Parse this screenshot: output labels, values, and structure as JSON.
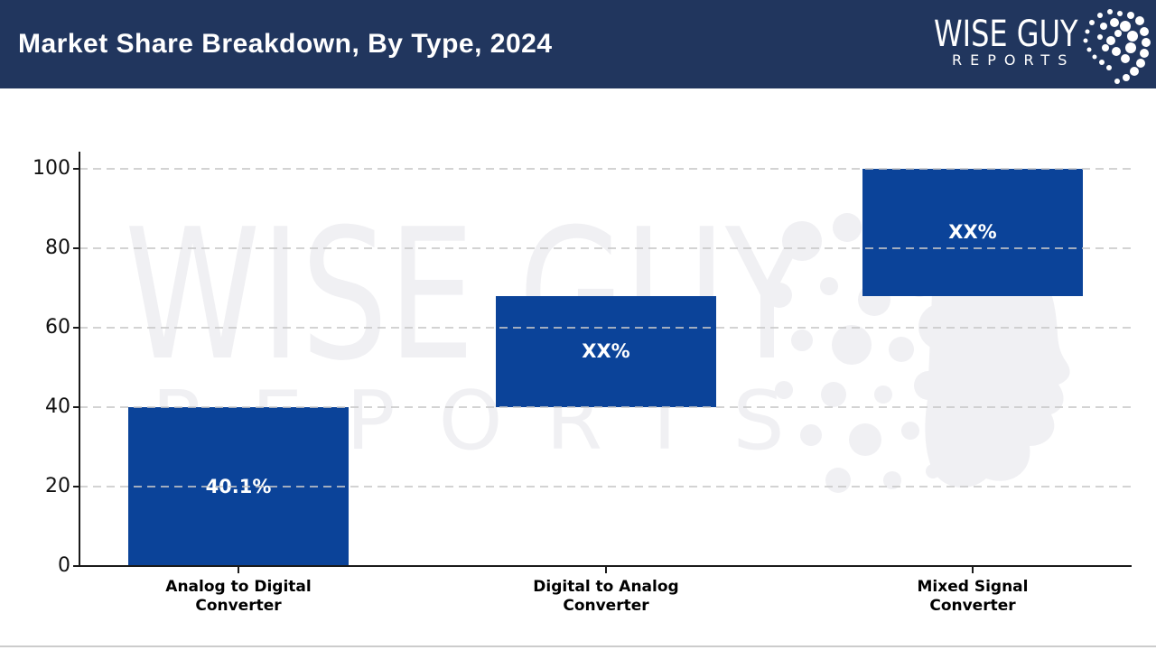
{
  "header": {
    "title": "Market Share Breakdown, By Type, 2024",
    "logo": {
      "line1": "WISE GUY",
      "line2": "REPORTS"
    }
  },
  "watermark": {
    "line1": "WISE GUY",
    "line2": "REPORTS"
  },
  "chart_data": {
    "type": "bar",
    "variant": "floating-segment-waterfall",
    "title": "Market Share Breakdown, By Type, 2024",
    "categories": [
      "Analog to Digital Converter",
      "Digital to Analog Converter",
      "Mixed Signal Converter"
    ],
    "bars": [
      {
        "category": "Analog to Digital Converter",
        "start": 0,
        "end": 40.1,
        "label": "40.1%"
      },
      {
        "category": "Digital to Analog Converter",
        "start": 40.1,
        "end": 68,
        "label": "XX%"
      },
      {
        "category": "Mixed Signal Converter",
        "start": 68,
        "end": 100,
        "label": "XX%"
      }
    ],
    "xlabel": "",
    "ylabel": "",
    "ylim": [
      0,
      100
    ],
    "yticks": [
      0,
      20,
      40,
      60,
      80,
      100
    ],
    "grid": "horizontal-dashed-drawn-over-bars",
    "legend": "none"
  },
  "colors": {
    "header_bg": "#21365e",
    "bar": "#0b4399",
    "bar_label": "#ffffff",
    "grid": "#c8c8c8",
    "axis": "#1a1a1a",
    "tick_text": "#111111",
    "watermark": "#f0f0f3",
    "footer_line": "#cccccc"
  }
}
